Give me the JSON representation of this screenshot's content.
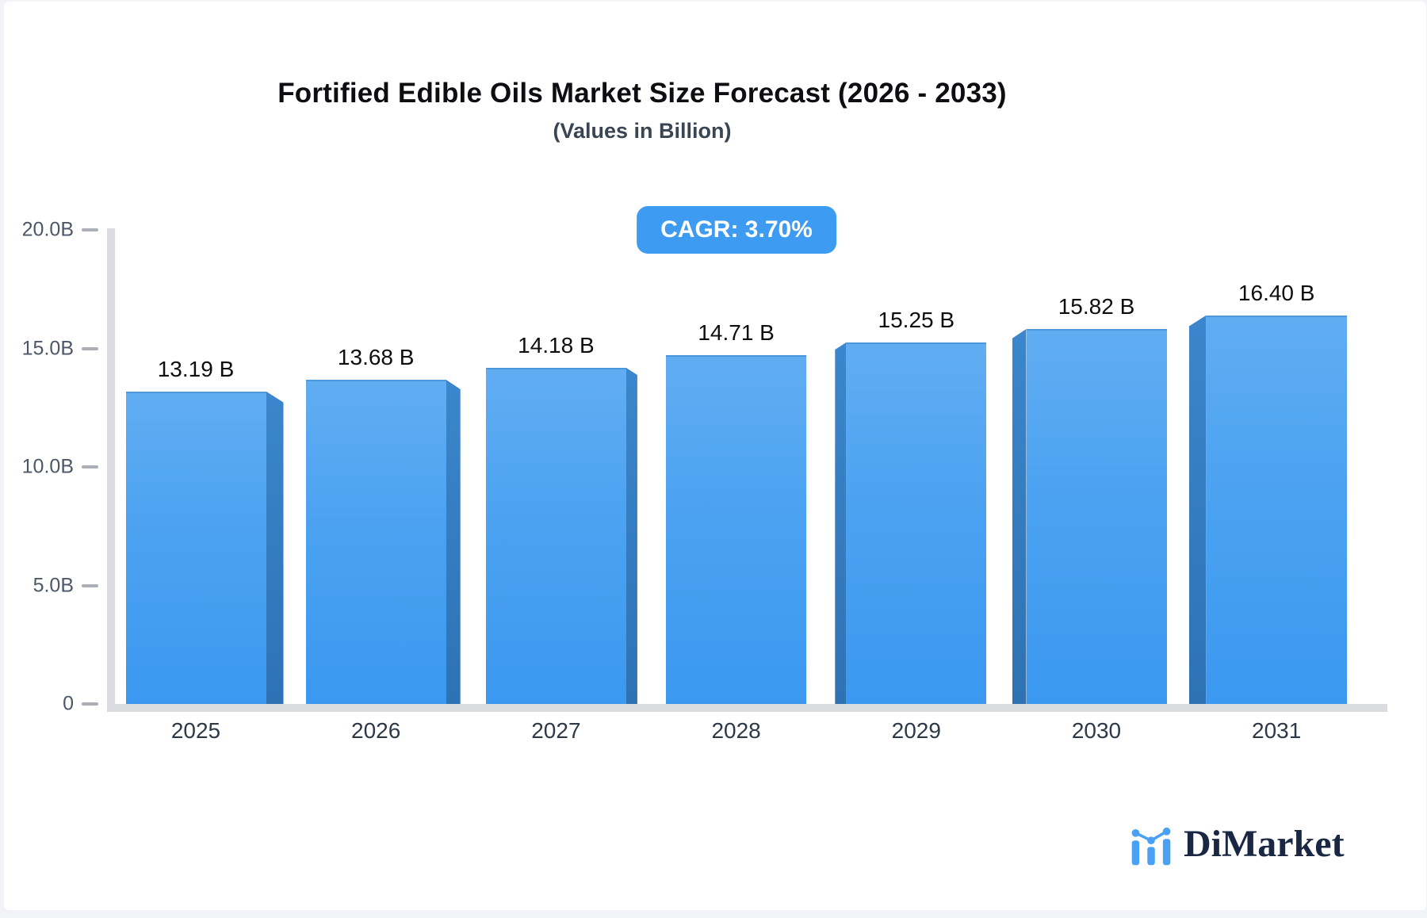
{
  "header": {
    "title": "Fortified Edible Oils Market Size Forecast (2026 - 2033)",
    "subtitle": "(Values in Billion)"
  },
  "badge": {
    "label": "CAGR: 3.70%",
    "background": "#3d9bf1",
    "text_color": "#ffffff"
  },
  "chart_data": {
    "type": "bar",
    "categories": [
      "2025",
      "2026",
      "2027",
      "2028",
      "2029",
      "2030",
      "2031"
    ],
    "values": [
      13.19,
      13.68,
      14.18,
      14.71,
      15.25,
      15.82,
      16.4
    ],
    "value_labels": [
      "13.19 B",
      "13.68 B",
      "14.18 B",
      "14.71 B",
      "15.25 B",
      "15.82 B",
      "16.40 B"
    ],
    "title": "Fortified Edible Oils Market Size Forecast (2026 - 2033)",
    "subtitle": "(Values in Billion)",
    "xlabel": "",
    "ylabel": "",
    "ylim": [
      0,
      20
    ],
    "yticks": [
      0,
      5,
      10,
      15,
      20
    ],
    "ytick_labels": [
      "0",
      "5.0B",
      "10.0B",
      "15.0B",
      "20.0B"
    ],
    "grid": false,
    "legend": false,
    "style": "3d-perspective-columns",
    "bar_face_color_top": "#61adf2",
    "bar_face_color_bottom": "#3b98f0",
    "bar_side_color": "#2f79bf",
    "axis_color": "#d9dbdf",
    "tick_color": "#abafb8",
    "ytick_text_color": "#4c5767",
    "xtick_text_color": "#2e3947"
  },
  "logo": {
    "text": "DiMarket",
    "icon": "bar-chart-logo-icon",
    "accent_color": "#4aa0f2",
    "text_color": "#1a2742"
  }
}
